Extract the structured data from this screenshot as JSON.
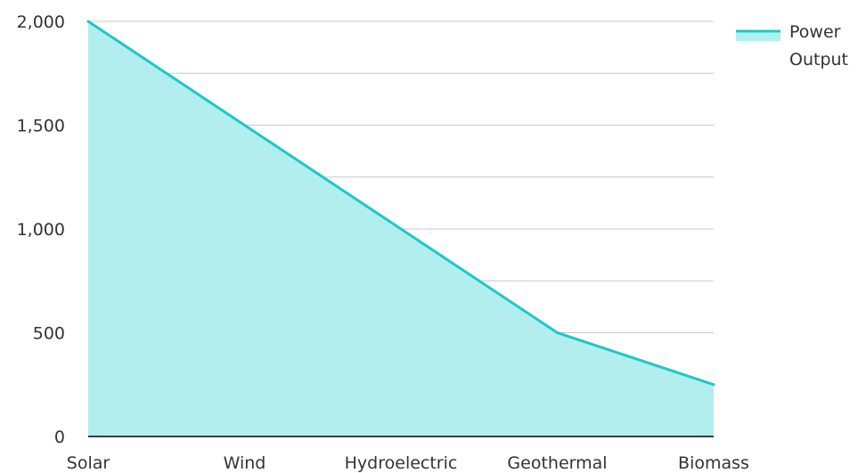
{
  "chart_data": {
    "type": "area",
    "categories": [
      "Solar",
      "Wind",
      "Hydroelectric",
      "Geothermal",
      "Biomass"
    ],
    "series": [
      {
        "name": "Power Output",
        "values": [
          2000,
          1500,
          1000,
          500,
          250
        ]
      }
    ],
    "ylim": [
      0,
      2000
    ],
    "yticks": [
      0,
      500,
      1000,
      1500,
      2000
    ],
    "ytick_labels": [
      "0",
      "500",
      "1,000",
      "1,500",
      "2,000"
    ],
    "minor_gridlines": [
      250,
      750,
      1250,
      1750
    ],
    "grid": true,
    "legend": {
      "position": "top-right",
      "lines": [
        "Power",
        "Output"
      ]
    },
    "colors": {
      "line": "#1cc8c8",
      "fill": "#b2eeed",
      "grid": "#c8c8c8",
      "axis": "#000000"
    }
  }
}
